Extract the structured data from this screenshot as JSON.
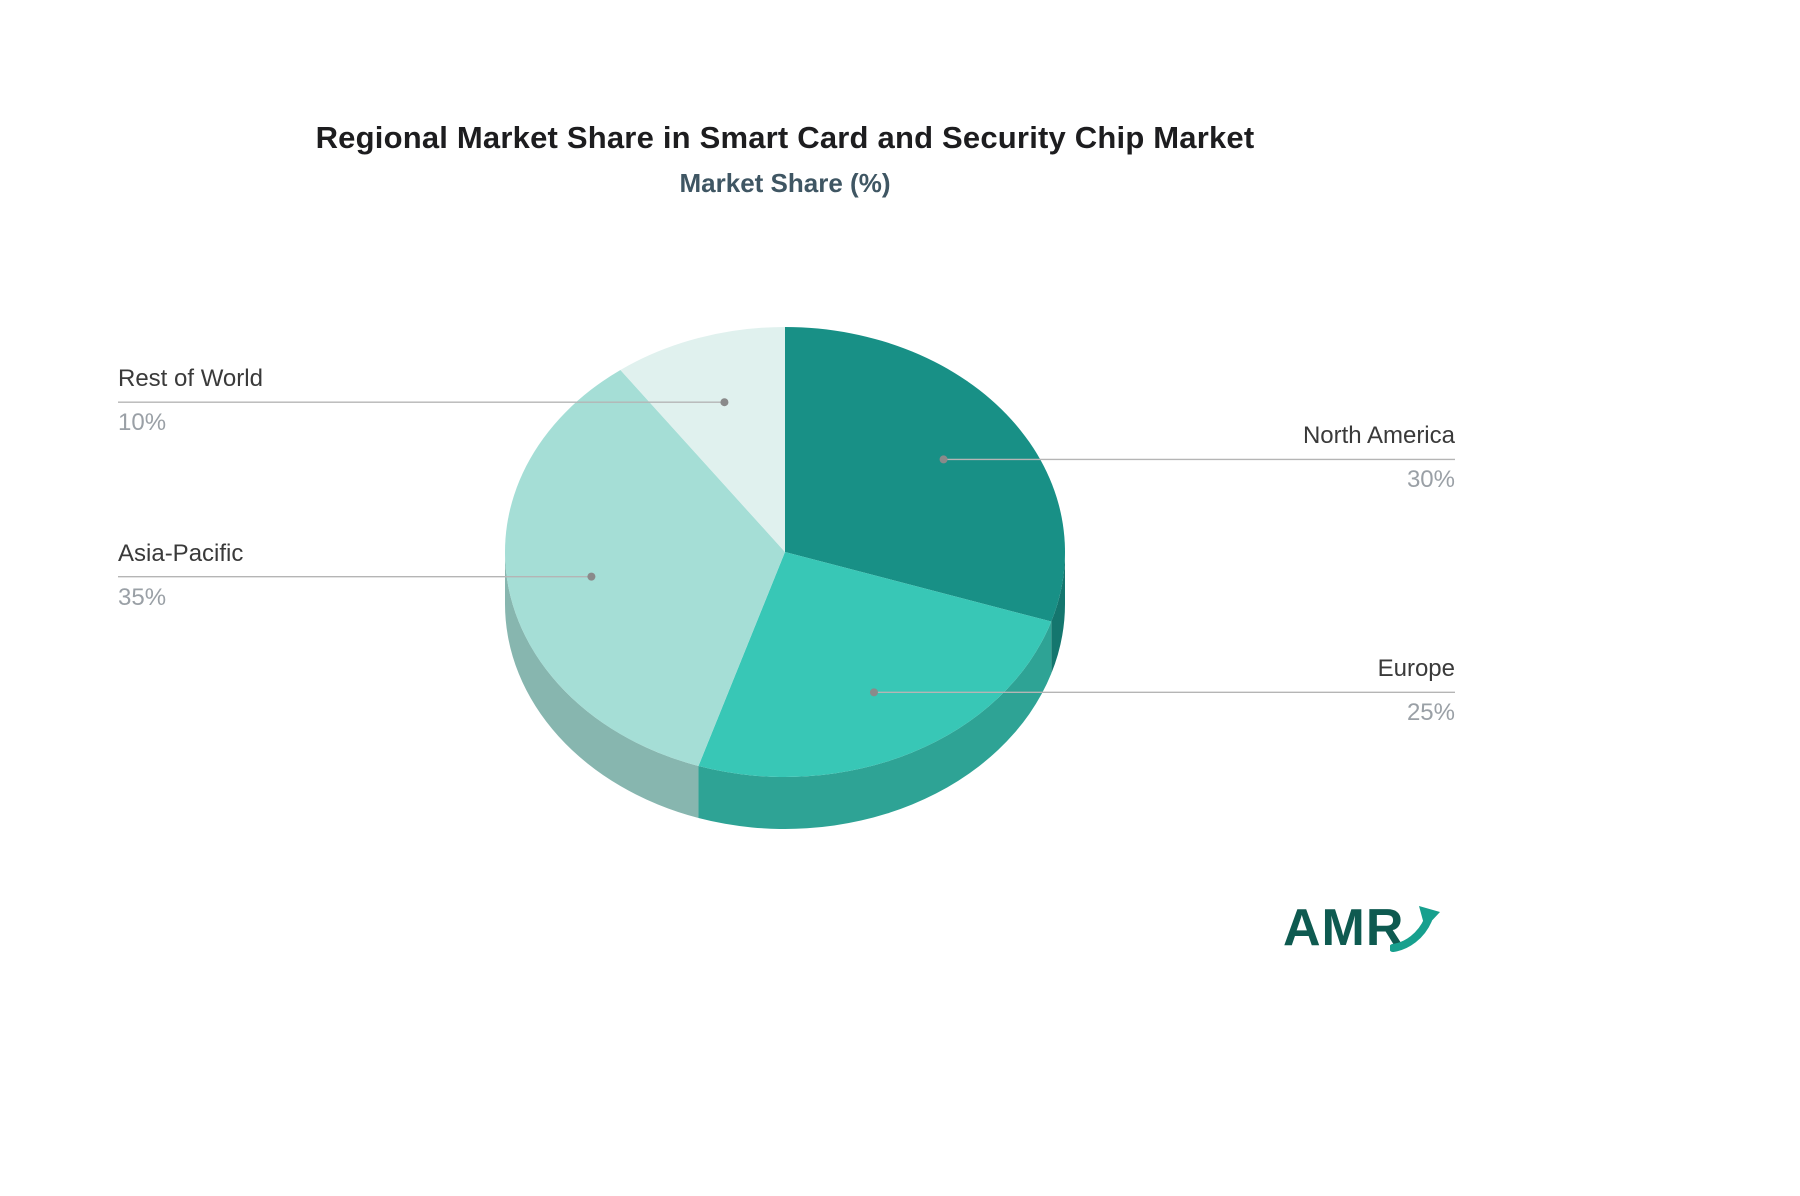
{
  "chart_data": {
    "type": "pie",
    "title": "Regional Market Share in Smart Card and Security Chip Market",
    "subtitle": "Market Share (%)",
    "unit": "%",
    "legend_position": "none",
    "series": [
      {
        "name": "North America",
        "value": 30,
        "color": "#189086"
      },
      {
        "name": "Europe",
        "value": 25,
        "color": "#38c7b6"
      },
      {
        "name": "Asia-Pacific",
        "value": 35,
        "color": "#a5ded6"
      },
      {
        "name": "Rest of World",
        "value": 10,
        "color": "#e0f1ee"
      }
    ],
    "label_style": {
      "name_color": "#3a3a3a",
      "percent_color": "#9aa0a6",
      "line_color": "#b5b5b5",
      "dot_color": "#8a8a8a"
    }
  },
  "branding": {
    "logo_text": "AMR",
    "logo_color": "#0e5a50",
    "arrow_color": "#17a08e"
  }
}
